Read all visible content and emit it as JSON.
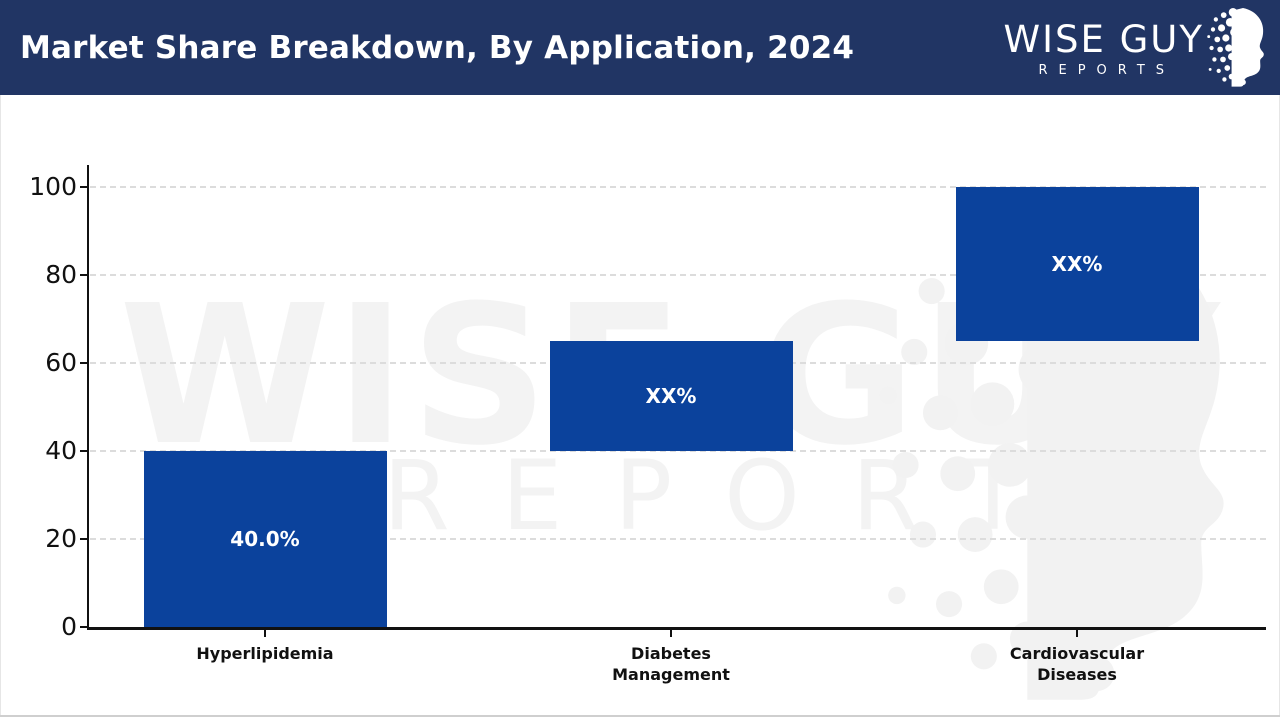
{
  "header": {
    "title": "Market Share Breakdown, By Application, 2024",
    "logo": {
      "name": "WISE GUY",
      "sub": "REPORTS"
    }
  },
  "watermark": {
    "big": "WISE GUY",
    "small": "REPORTS"
  },
  "chart_data": {
    "type": "bar",
    "subtype": "floating-segment-waterfall",
    "title": "Market Share Breakdown, By Application, 2024",
    "categories": [
      "Hyperlipidemia",
      "Diabetes\nManagement",
      "Cardiovascular\nDiseases"
    ],
    "series": [
      {
        "name": "Market Share",
        "segments": [
          {
            "category": "Hyperlipidemia",
            "from": 0,
            "to": 40,
            "label": "40.0%"
          },
          {
            "category": "Diabetes Management",
            "from": 40,
            "to": 65,
            "label": "XX%"
          },
          {
            "category": "Cardiovascular Diseases",
            "from": 65,
            "to": 100,
            "label": "XX%"
          }
        ]
      }
    ],
    "yticks": [
      0,
      20,
      40,
      60,
      80,
      100
    ],
    "ylim": [
      0,
      105
    ],
    "xlabel": "",
    "ylabel": "",
    "grid": "horizontal-dashed",
    "legend_position": "none",
    "bar_color": "#0b429c",
    "bar_label_color": "#ffffff"
  },
  "colors": {
    "header_bg": "#213564",
    "header_text": "#ffffff",
    "bar": "#0b429c",
    "grid": "#dcdcdc",
    "axis": "#111111",
    "watermark": "#f3f3f3",
    "page_border": "#cfcfcf"
  }
}
